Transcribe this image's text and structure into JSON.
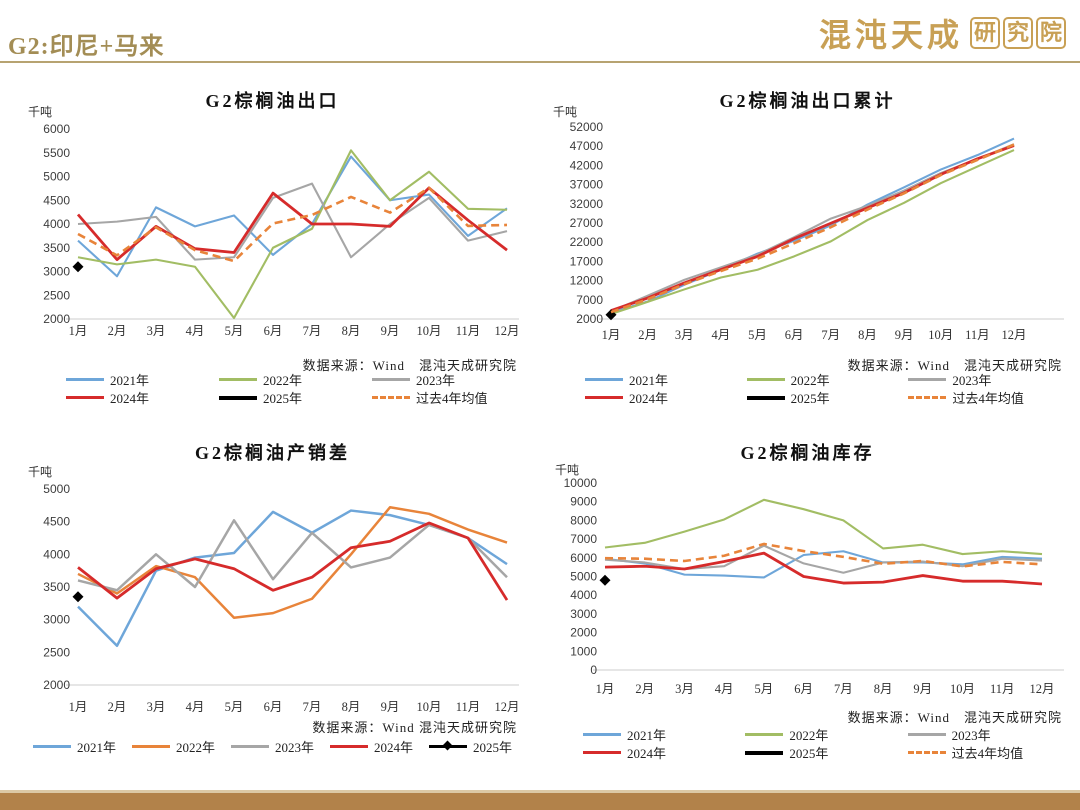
{
  "header": {
    "title": "G2:印尼+马来"
  },
  "logo": {
    "main": "混沌天成",
    "boxed": [
      "研",
      "究",
      "院"
    ]
  },
  "palette": {
    "gold": "#a38d55",
    "logo_gold": "#c8a055",
    "footer_brown": "#b2824a",
    "blue": "#6ea6d9",
    "green": "#a2bd64",
    "gray": "#a6a6a6",
    "red": "#d62b2b",
    "orange": "#e8843a",
    "black": "#000000"
  },
  "chart_data": [
    {
      "type": "line",
      "title": "G2棕榈油出口",
      "unit": "千吨",
      "source": "数据来源：Wind　混沌天成研究院",
      "categories": [
        "1月",
        "2月",
        "3月",
        "4月",
        "5月",
        "6月",
        "7月",
        "8月",
        "9月",
        "10月",
        "11月",
        "12月"
      ],
      "ylim": [
        2000,
        6000
      ],
      "ystep": 500,
      "grid": false,
      "legend_position": "bottom",
      "series": [
        {
          "name": "2021年",
          "color": "#6ea6d9",
          "style": "solid",
          "values": [
            3650,
            2900,
            4350,
            3950,
            4180,
            3350,
            4000,
            5420,
            4500,
            4620,
            3750,
            4330
          ]
        },
        {
          "name": "2022年",
          "color": "#a2bd64",
          "style": "solid",
          "values": [
            3300,
            3150,
            3250,
            3100,
            2020,
            3500,
            3900,
            5550,
            4500,
            5100,
            4320,
            4300
          ]
        },
        {
          "name": "2023年",
          "color": "#a6a6a6",
          "style": "solid",
          "values": [
            4000,
            4050,
            4150,
            3250,
            3300,
            4550,
            4850,
            3300,
            4000,
            4550,
            3650,
            3850
          ]
        },
        {
          "name": "2024年",
          "color": "#d62b2b",
          "style": "solid",
          "values": [
            4200,
            3250,
            3950,
            3480,
            3400,
            4650,
            4000,
            4000,
            3950,
            4760,
            4080,
            3450
          ]
        },
        {
          "name": "2025年",
          "color": "#000000",
          "style": "diamond",
          "values": [
            3100
          ]
        },
        {
          "name": "过去4年均值",
          "color": "#e8843a",
          "style": "dashed",
          "values": [
            3790,
            3340,
            3930,
            3450,
            3220,
            4010,
            4190,
            4570,
            4240,
            4760,
            3960,
            3980
          ]
        }
      ],
      "legend_rows": [
        [
          "2021年",
          "2022年",
          "2023年"
        ],
        [
          "2024年",
          "2025年",
          "过去4年均值"
        ]
      ]
    },
    {
      "type": "line",
      "title": "G2棕榈油出口累计",
      "unit": "千吨",
      "source": "数据来源：Wind　混沌天成研究院",
      "categories": [
        "1月",
        "2月",
        "3月",
        "4月",
        "5月",
        "6月",
        "7月",
        "8月",
        "9月",
        "10月",
        "11月",
        "12月"
      ],
      "ylim": [
        2000,
        52000
      ],
      "ystep": 5000,
      "grid": false,
      "legend_position": "bottom",
      "series": [
        {
          "name": "2021年",
          "color": "#6ea6d9",
          "style": "solid",
          "values": [
            3650,
            6550,
            10900,
            14850,
            19030,
            22380,
            26380,
            31800,
            36300,
            40920,
            44670,
            49000
          ]
        },
        {
          "name": "2022年",
          "color": "#a2bd64",
          "style": "solid",
          "values": [
            3300,
            6450,
            9700,
            12800,
            14820,
            18320,
            22220,
            27770,
            32270,
            37370,
            41690,
            45990
          ]
        },
        {
          "name": "2023年",
          "color": "#a6a6a6",
          "style": "solid",
          "values": [
            4000,
            8050,
            12200,
            15450,
            18750,
            23300,
            28150,
            31450,
            35450,
            40000,
            43650,
            47500
          ]
        },
        {
          "name": "2024年",
          "color": "#d62b2b",
          "style": "solid",
          "values": [
            4200,
            7450,
            11400,
            14880,
            18280,
            22930,
            26930,
            30930,
            34880,
            39640,
            43720,
            47170
          ]
        },
        {
          "name": "2025年",
          "color": "#000000",
          "style": "diamond",
          "values": [
            3100
          ]
        },
        {
          "name": "过去4年均值",
          "color": "#e8843a",
          "style": "dashed",
          "values": [
            3790,
            7130,
            11050,
            14500,
            17720,
            21730,
            25920,
            30490,
            34730,
            39480,
            43430,
            47420
          ]
        }
      ],
      "legend_rows": [
        [
          "2021年",
          "2022年",
          "2023年"
        ],
        [
          "2024年",
          "2025年",
          "过去4年均值"
        ]
      ]
    },
    {
      "type": "line",
      "title": "G2棕榈油产销差",
      "unit": "千吨",
      "source": "数据来源：Wind 混沌天成研究院",
      "categories": [
        "1月",
        "2月",
        "3月",
        "4月",
        "5月",
        "6月",
        "7月",
        "8月",
        "9月",
        "10月",
        "11月",
        "12月"
      ],
      "ylim": [
        2000,
        5000
      ],
      "ystep": 500,
      "grid": false,
      "legend_position": "bottom",
      "series": [
        {
          "name": "2021年",
          "color": "#6ea6d9",
          "style": "solid",
          "values": [
            3200,
            2600,
            3750,
            3950,
            4020,
            4650,
            4330,
            4670,
            4600,
            4450,
            4250,
            3850
          ]
        },
        {
          "name": "2022年",
          "color": "#e8843a",
          "style": "solid",
          "values": [
            3700,
            3400,
            3820,
            3650,
            3030,
            3100,
            3320,
            4000,
            4720,
            4620,
            4380,
            4180
          ]
        },
        {
          "name": "2023年",
          "color": "#a6a6a6",
          "style": "solid",
          "values": [
            3600,
            3450,
            4000,
            3500,
            4520,
            3620,
            4330,
            3800,
            3950,
            4450,
            4250,
            3650
          ]
        },
        {
          "name": "2024年",
          "color": "#d62b2b",
          "style": "solid",
          "values": [
            3800,
            3330,
            3780,
            3930,
            3780,
            3450,
            3650,
            4100,
            4200,
            4480,
            4250,
            3300
          ]
        },
        {
          "name": "2025年",
          "color": "#000000",
          "style": "diamond",
          "values": [
            3350
          ]
        }
      ],
      "legend_rows": [
        [
          "2021年",
          "2022年",
          "2023年",
          "2024年",
          "2025年"
        ]
      ]
    },
    {
      "type": "line",
      "title": "G2棕榈油库存",
      "unit": "千吨",
      "source": "数据来源：Wind　混沌天成研究院",
      "categories": [
        "1月",
        "2月",
        "3月",
        "4月",
        "5月",
        "6月",
        "7月",
        "8月",
        "9月",
        "10月",
        "11月",
        "12月"
      ],
      "ylim": [
        0,
        10000
      ],
      "ystep": 1000,
      "grid": false,
      "legend_position": "bottom",
      "series": [
        {
          "name": "2021年",
          "color": "#6ea6d9",
          "style": "solid",
          "values": [
            5950,
            5700,
            5100,
            5050,
            4950,
            6150,
            6350,
            5750,
            5750,
            5650,
            6050,
            5950
          ]
        },
        {
          "name": "2022年",
          "color": "#a2bd64",
          "style": "solid",
          "values": [
            6550,
            6800,
            7400,
            8050,
            9100,
            8600,
            8000,
            6500,
            6700,
            6200,
            6350,
            6200
          ]
        },
        {
          "name": "2023年",
          "color": "#a6a6a6",
          "style": "solid",
          "values": [
            5900,
            5750,
            5400,
            5550,
            6650,
            5700,
            5200,
            5750,
            5800,
            5550,
            5950,
            5850
          ]
        },
        {
          "name": "2024年",
          "color": "#d62b2b",
          "style": "solid",
          "values": [
            5500,
            5550,
            5400,
            5800,
            6250,
            5000,
            4650,
            4700,
            5050,
            4750,
            4750,
            4600
          ]
        },
        {
          "name": "2025年",
          "color": "#000000",
          "style": "diamond",
          "values": [
            4800
          ]
        },
        {
          "name": "过去4年均值",
          "color": "#e8843a",
          "style": "dashed",
          "values": [
            5980,
            5950,
            5830,
            6110,
            6740,
            6360,
            6050,
            5680,
            5830,
            5540,
            5780,
            5650
          ]
        }
      ],
      "legend_rows": [
        [
          "2021年",
          "2022年",
          "2023年"
        ],
        [
          "2024年",
          "2025年",
          "过去4年均值"
        ]
      ]
    }
  ]
}
